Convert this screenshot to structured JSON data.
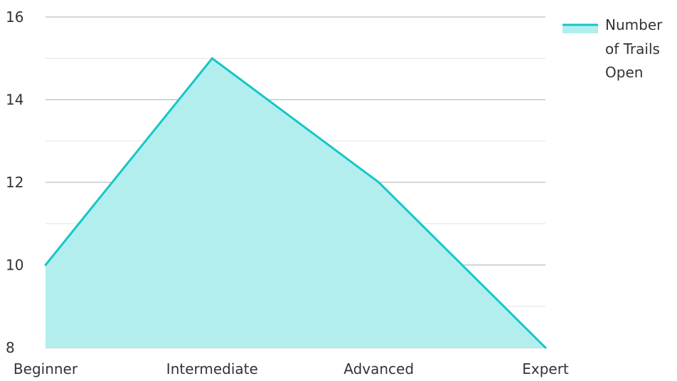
{
  "chart_data": {
    "type": "area",
    "categories": [
      "Beginner",
      "Intermediate",
      "Advanced",
      "Expert"
    ],
    "series": [
      {
        "name": "Number of Trails Open",
        "values": [
          10,
          15,
          12,
          8
        ]
      }
    ],
    "ylim": [
      8,
      16
    ],
    "y_ticks": [
      8,
      10,
      12,
      14,
      16
    ],
    "grid": true,
    "legend": {
      "position": "right",
      "lines": [
        "Number",
        "of Trails",
        "Open"
      ]
    },
    "colors": {
      "line": "#16c7c7",
      "fill": "#b2eeee",
      "major_grid": "#bdbdbd",
      "minor_grid": "#e3e3e3",
      "text": "#333333"
    }
  }
}
